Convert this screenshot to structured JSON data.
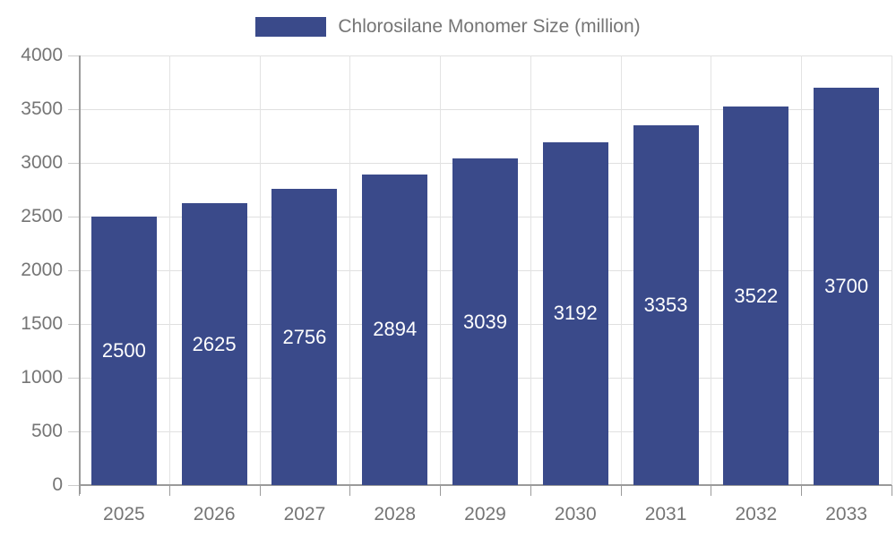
{
  "legend": {
    "label": "Chlorosilane Monomer Size (million)"
  },
  "chart_data": {
    "type": "bar",
    "title": "Chlorosilane Monomer Size (million)",
    "categories": [
      "2025",
      "2026",
      "2027",
      "2028",
      "2029",
      "2030",
      "2031",
      "2032",
      "2033"
    ],
    "values": [
      2500,
      2625,
      2756,
      2894,
      3039,
      3192,
      3353,
      3522,
      3700
    ],
    "xlabel": "",
    "ylabel": "",
    "ylim": [
      0,
      4000
    ],
    "ytick_step": 500,
    "ytick_labels": [
      "0",
      "500",
      "1000",
      "1500",
      "2000",
      "2500",
      "3000",
      "3500",
      "4000"
    ],
    "grid": true,
    "legend_position": "top-center",
    "value_labels_inside_bars": true,
    "colors": {
      "bar": "#3a4a8a",
      "value_label": "#ffffff",
      "tick_label": "#757575",
      "grid": "#e0e0e0",
      "axis": "#9a9a9a",
      "background": "#ffffff"
    }
  }
}
